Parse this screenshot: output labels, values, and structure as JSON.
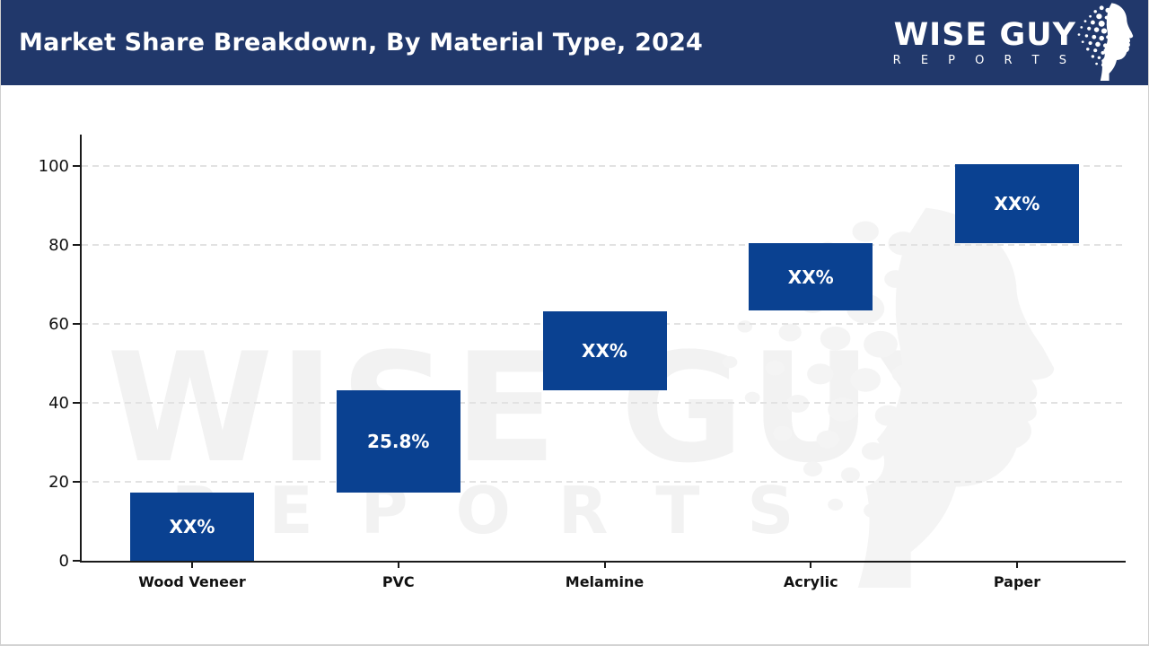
{
  "header": {
    "title": "Market Share Breakdown, By Material Type, 2024",
    "bg_color": "#21386b",
    "logo": {
      "line1": "WISE GUY",
      "line2": "R E P O R T S"
    }
  },
  "watermark": {
    "line1": "WISE GUY",
    "line2": "R E P O R T S"
  },
  "chart_data": {
    "type": "bar",
    "subtype": "floating-waterfall",
    "title": "Market Share Breakdown, By Material Type, 2024",
    "categories": [
      "Wood Veneer",
      "PVC",
      "Melamine",
      "Acrylic",
      "Paper"
    ],
    "series": [
      {
        "name": "Market Share (%)",
        "base": [
          0,
          17.3,
          43.1,
          63.3,
          80.4
        ],
        "values": [
          17.3,
          25.8,
          20.2,
          17.1,
          20.1
        ]
      }
    ],
    "bar_labels": [
      "XX%",
      "25.8%",
      "XX%",
      "XX%",
      "XX%"
    ],
    "xlabel": "",
    "ylabel": "",
    "ylim": [
      0,
      100.5
    ],
    "yticks": [
      0,
      20,
      40,
      60,
      80,
      100
    ],
    "grid": "horizontal-dashed",
    "bar_color": "#0a4191",
    "axis_color": "#1a1a1a",
    "legend": "none"
  }
}
